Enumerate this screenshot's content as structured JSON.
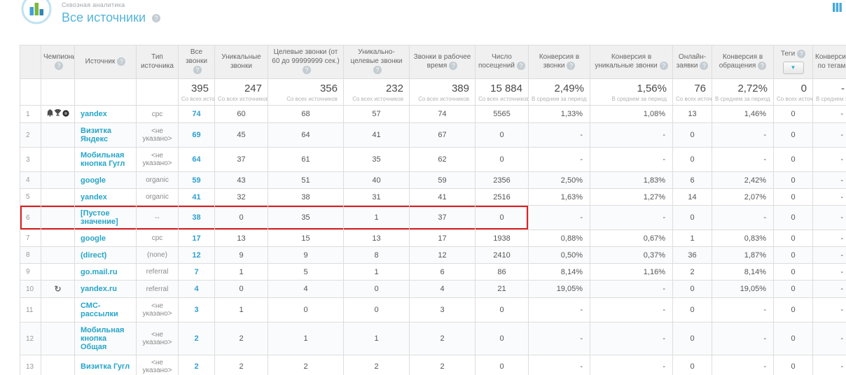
{
  "header": {
    "subtitle": "Сквозная аналитика",
    "title": "Все источники",
    "help_icon": "question-mark",
    "title_color": "#55b4d9",
    "accent_link_color": "#26a5c8",
    "highlight_color": "#e01f1f"
  },
  "table": {
    "columns": [
      {
        "label": "",
        "help": false
      },
      {
        "label": "Чемпионы",
        "help": true
      },
      {
        "label": "Источник",
        "help": true
      },
      {
        "label": "Тип источника",
        "help": false
      },
      {
        "label": "Все звонки",
        "help": true
      },
      {
        "label": "Уникальные звонки",
        "help": false
      },
      {
        "label": "Целевые звонки (от 60 до 99999999 сек.)",
        "help": true
      },
      {
        "label": "Уникально-целевые звонки",
        "help": true
      },
      {
        "label": "Звонки в рабочее время",
        "help": true
      },
      {
        "label": "Число посещений",
        "help": true
      },
      {
        "label": "Конверсия в звонки",
        "help": true
      },
      {
        "label": "Конверсия в уникальные звонки",
        "help": true
      },
      {
        "label": "Онлайн-заявки",
        "help": true
      },
      {
        "label": "Конверсия в обращения",
        "help": true
      },
      {
        "label": "Теги",
        "help": true,
        "dropdown": true
      },
      {
        "label": "Конверсия по тегам",
        "help": false
      }
    ],
    "summary": [
      {
        "value": "395",
        "caption": "Со всех источников"
      },
      {
        "value": "247",
        "caption": "Со всех источников"
      },
      {
        "value": "356",
        "caption": "Со всех источников"
      },
      {
        "value": "232",
        "caption": "Со всех источников"
      },
      {
        "value": "389",
        "caption": "Со всех источников"
      },
      {
        "value": "15 884",
        "caption": "Со всех источников"
      },
      {
        "value": "2,49%",
        "caption": "В среднем за период"
      },
      {
        "value": "1,56%",
        "caption": "В среднем за период"
      },
      {
        "value": "76",
        "caption": "Со всех источников"
      },
      {
        "value": "2,72%",
        "caption": "В среднем за период"
      },
      {
        "value": "0",
        "caption": "Со всех источников"
      },
      {
        "value": "-",
        "caption": "В среднем за период"
      }
    ],
    "rows": [
      {
        "num": "1",
        "icons": [
          "bell",
          "cup",
          "medal"
        ],
        "source": "yandex",
        "type": "cpc",
        "cells": [
          "74",
          "60",
          "68",
          "57",
          "74",
          "5565",
          "1,33%",
          "1,08%",
          "13",
          "1,46%",
          "0",
          "-"
        ],
        "highlight": false
      },
      {
        "num": "2",
        "icons": [],
        "source": "Визитка Яндекс",
        "type": "<не указано>",
        "cells": [
          "69",
          "45",
          "64",
          "41",
          "67",
          "0",
          "-",
          "-",
          "0",
          "-",
          "0",
          "-"
        ],
        "highlight": false
      },
      {
        "num": "3",
        "icons": [],
        "source": "Мобильная кнопка Гугл",
        "type": "<не указано>",
        "cells": [
          "64",
          "37",
          "61",
          "35",
          "62",
          "0",
          "-",
          "-",
          "0",
          "-",
          "0",
          "-"
        ],
        "highlight": false
      },
      {
        "num": "4",
        "icons": [],
        "source": "google",
        "type": "organic",
        "cells": [
          "59",
          "43",
          "51",
          "40",
          "59",
          "2356",
          "2,50%",
          "1,83%",
          "6",
          "2,42%",
          "0",
          "-"
        ],
        "highlight": false
      },
      {
        "num": "5",
        "icons": [],
        "source": "yandex",
        "type": "organic",
        "cells": [
          "41",
          "32",
          "38",
          "31",
          "41",
          "2516",
          "1,63%",
          "1,27%",
          "14",
          "2,07%",
          "0",
          "-"
        ],
        "highlight": false
      },
      {
        "num": "6",
        "icons": [],
        "source": "[Пустое значение]",
        "type": "--",
        "cells": [
          "38",
          "0",
          "35",
          "1",
          "37",
          "0",
          "-",
          "-",
          "0",
          "-",
          "0",
          "-"
        ],
        "highlight": true
      },
      {
        "num": "7",
        "icons": [],
        "source": "google",
        "type": "cpc",
        "cells": [
          "17",
          "13",
          "15",
          "13",
          "17",
          "1938",
          "0,88%",
          "0,67%",
          "1",
          "0,83%",
          "0",
          "-"
        ],
        "highlight": false
      },
      {
        "num": "8",
        "icons": [],
        "source": "(direct)",
        "type": "(none)",
        "cells": [
          "12",
          "9",
          "9",
          "8",
          "12",
          "2410",
          "0,50%",
          "0,37%",
          "36",
          "1,87%",
          "0",
          "-"
        ],
        "highlight": false
      },
      {
        "num": "9",
        "icons": [],
        "source": "go.mail.ru",
        "type": "referral",
        "cells": [
          "7",
          "1",
          "5",
          "1",
          "6",
          "86",
          "8,14%",
          "1,16%",
          "2",
          "8,14%",
          "0",
          "-"
        ],
        "highlight": false
      },
      {
        "num": "10",
        "icons": [
          "refresh"
        ],
        "source": "yandex.ru",
        "type": "referral",
        "cells": [
          "4",
          "0",
          "4",
          "0",
          "4",
          "21",
          "19,05%",
          "-",
          "0",
          "19,05%",
          "0",
          "-"
        ],
        "highlight": false
      },
      {
        "num": "11",
        "icons": [],
        "source": "СМС-рассылки",
        "type": "<не указано>",
        "cells": [
          "3",
          "1",
          "0",
          "0",
          "3",
          "0",
          "-",
          "-",
          "0",
          "-",
          "0",
          "-"
        ],
        "highlight": false
      },
      {
        "num": "12",
        "icons": [],
        "source": "Мобильная кнопка Общая",
        "type": "<не указано>",
        "cells": [
          "2",
          "2",
          "1",
          "1",
          "2",
          "0",
          "-",
          "-",
          "0",
          "-",
          "0",
          "-"
        ],
        "highlight": false
      },
      {
        "num": "13",
        "icons": [],
        "source": "Визитка Гугл",
        "type": "<не указано>",
        "cells": [
          "2",
          "2",
          "2",
          "2",
          "2",
          "0",
          "-",
          "-",
          "0",
          "-",
          "0",
          "-"
        ],
        "highlight": false
      }
    ]
  }
}
